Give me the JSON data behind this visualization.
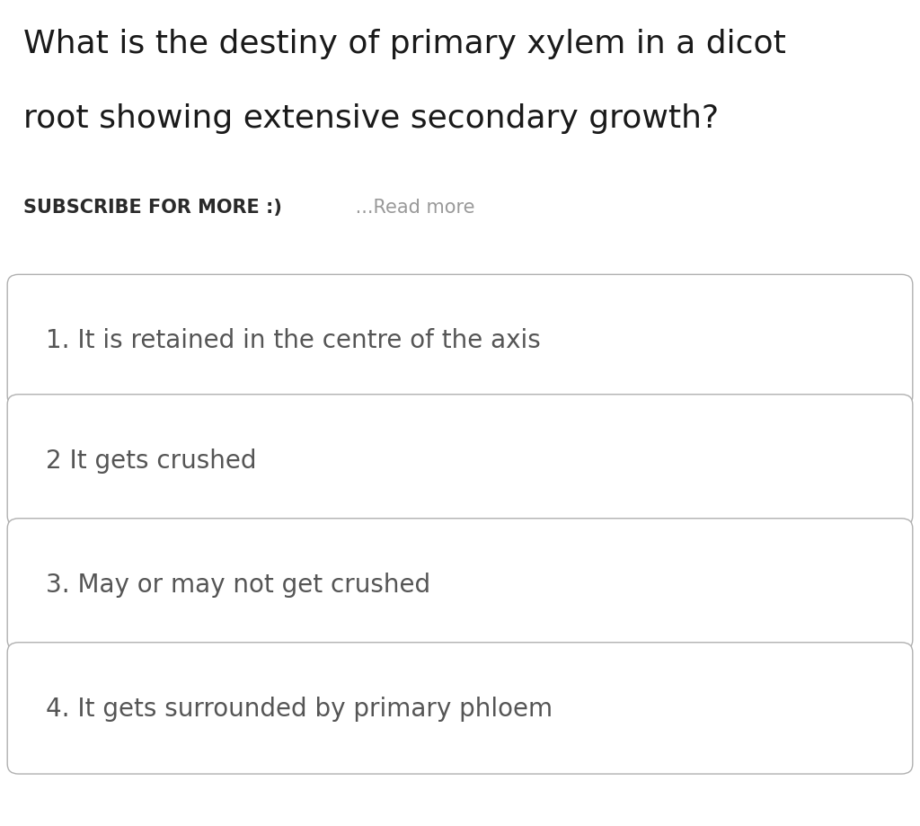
{
  "title_line1": "What is the destiny of primary xylem in a dicot",
  "title_line2": "root showing extensive secondary growth?",
  "subtitle_bold_part": "SUBSCRIBE FOR MORE :)",
  "subtitle_normal_part": " ...Read more",
  "options": [
    "1. It is retained in the centre of the axis",
    "2 It gets crushed",
    "3. May or may not get crushed",
    "4. It gets surrounded by primary phloem"
  ],
  "bg_color": "#ffffff",
  "title_color": "#1a1a1a",
  "subtitle_bold_color": "#2a2a2a",
  "subtitle_normal_color": "#999999",
  "option_text_color": "#555555",
  "box_edge_color": "#b0b0b0",
  "box_face_color": "#ffffff",
  "title_fontsize": 26,
  "subtitle_fontsize": 15,
  "option_fontsize": 20
}
